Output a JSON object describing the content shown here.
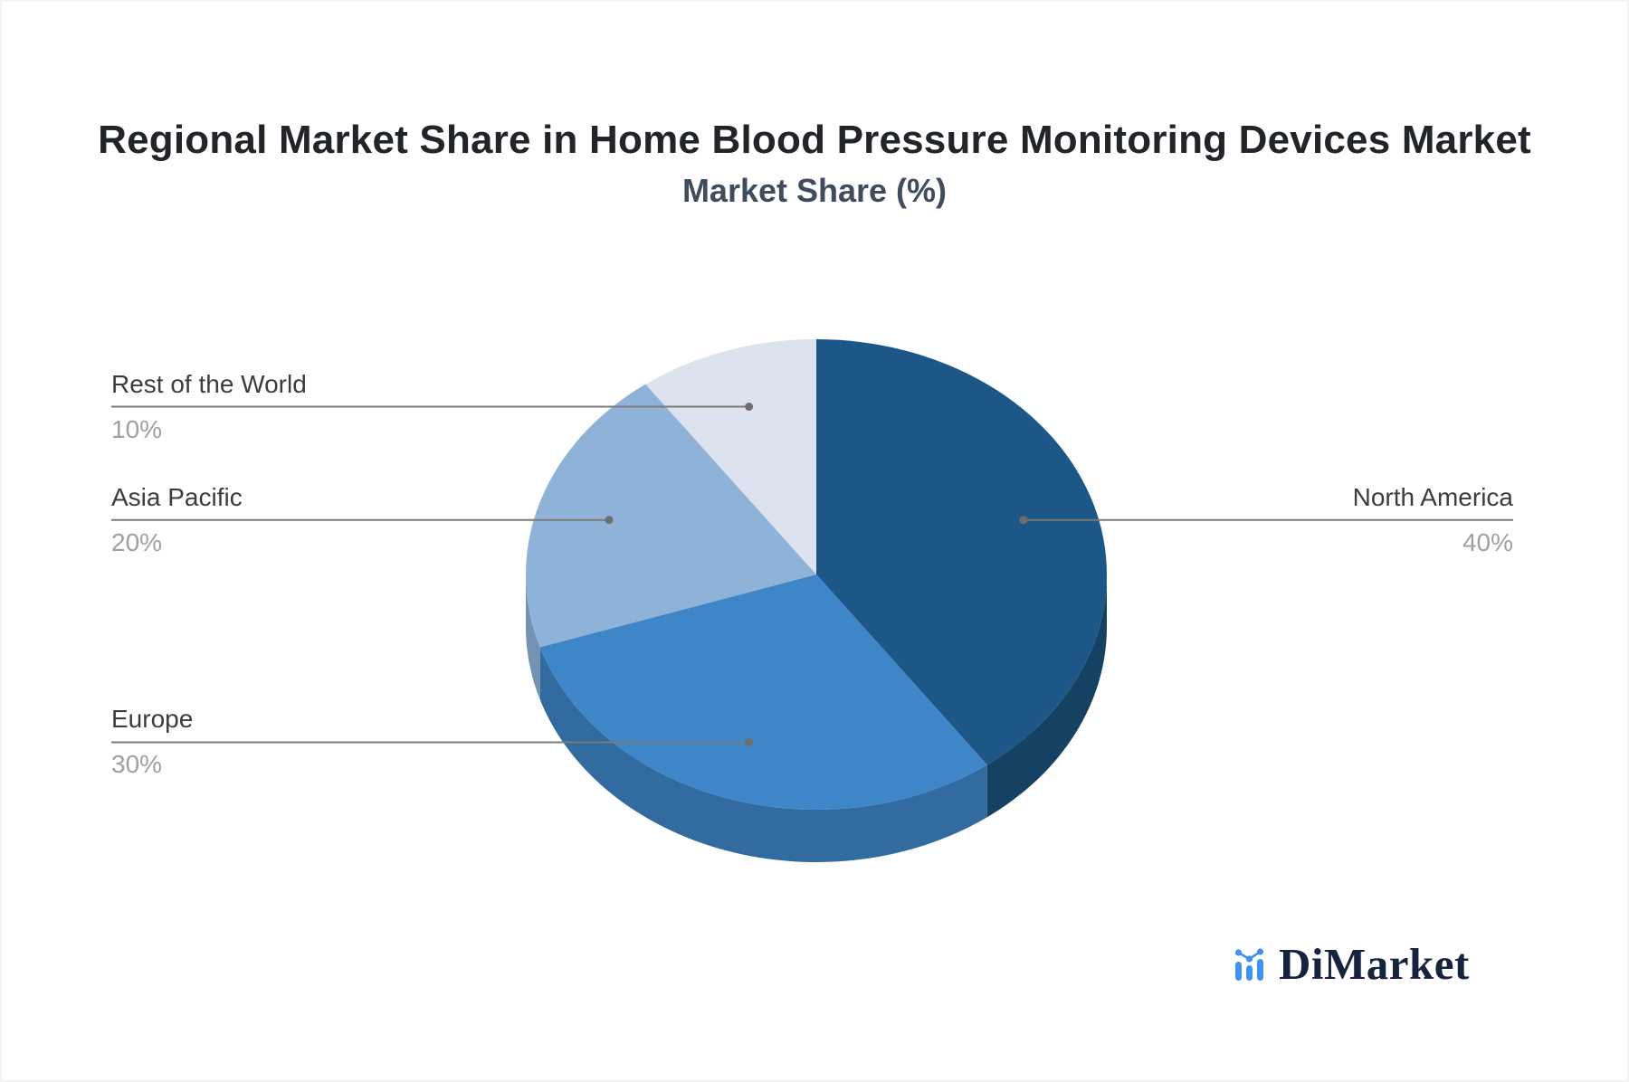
{
  "page": {
    "title": "Regional Market Share in Home Blood Pressure Monitoring Devices Market",
    "subtitle": "Market Share (%)"
  },
  "brand": {
    "name": "DiMarket",
    "icon": "mini-bar-line-chart-logo-icon",
    "bars_color": "#3f92f2",
    "text_color": "#16233f"
  },
  "chart_data": {
    "type": "pie",
    "is_3d": true,
    "title": "Regional Market Share in Home Blood Pressure Monitoring Devices Market",
    "subtitle": "Market Share (%)",
    "unit": "%",
    "direction": "clockwise",
    "start_angle_deg": 0,
    "legend": "none",
    "slices": [
      {
        "name": "North America",
        "value": 40,
        "pct_label": "40%",
        "color": "#1d5788",
        "side_color": "#154162",
        "label_side": "right"
      },
      {
        "name": "Europe",
        "value": 30,
        "pct_label": "30%",
        "color": "#3e86c8",
        "side_color": "#326b9f",
        "label_side": "left"
      },
      {
        "name": "Asia Pacific",
        "value": 20,
        "pct_label": "20%",
        "color": "#8fb2d9",
        "side_color": "#7493b4",
        "label_side": "left"
      },
      {
        "name": "Rest of the World",
        "value": 10,
        "pct_label": "10%",
        "color": "#dde3ee",
        "side_color": "#b8c2d4",
        "label_side": "left"
      }
    ],
    "style": {
      "leader_line_color": "#7a7a7a",
      "dot_color": "#6e6e6e",
      "name_color": "#3a3d40",
      "pct_color": "#a0a0a0"
    }
  }
}
